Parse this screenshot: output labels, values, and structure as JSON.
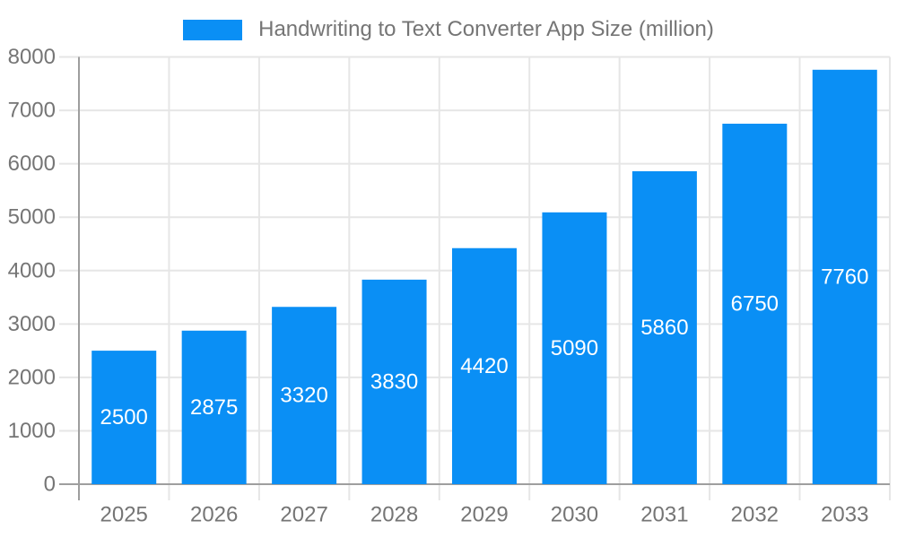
{
  "chart_data": {
    "type": "bar",
    "title": "Handwriting to Text Converter App Size (million)",
    "legend_position": "top",
    "categories": [
      "2025",
      "2026",
      "2027",
      "2028",
      "2029",
      "2030",
      "2031",
      "2032",
      "2033"
    ],
    "values": [
      2500,
      2875,
      3320,
      3830,
      4420,
      5090,
      5860,
      6750,
      7760
    ],
    "series": [
      {
        "name": "Handwriting to Text Converter App Size (million)",
        "values": [
          2500,
          2875,
          3320,
          3830,
          4420,
          5090,
          5860,
          6750,
          7760
        ]
      }
    ],
    "xlabel": "",
    "ylabel": "",
    "ylim": [
      0,
      8000
    ],
    "yticks": [
      0,
      1000,
      2000,
      3000,
      4000,
      5000,
      6000,
      7000,
      8000
    ],
    "grid": true,
    "bar_labels_shown": true,
    "colors": {
      "bar": "#0a8ff5",
      "bar_label": "#ffffff",
      "axis_text": "#757575",
      "title_text": "#757575",
      "grid_line": "#e6e6e6",
      "axis_line": "#9e9e9e",
      "background": "#ffffff"
    }
  }
}
